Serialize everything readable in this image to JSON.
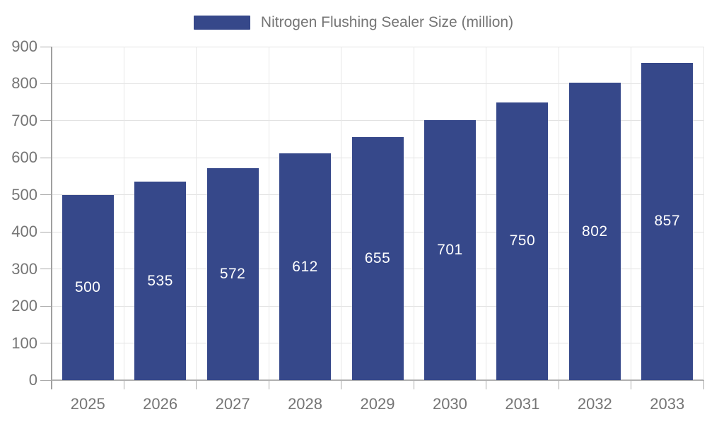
{
  "legend": {
    "label": "Nitrogen Flushing Sealer Size (million)"
  },
  "chart_data": {
    "type": "bar",
    "title": "",
    "xlabel": "",
    "ylabel": "",
    "categories": [
      "2025",
      "2026",
      "2027",
      "2028",
      "2029",
      "2030",
      "2031",
      "2032",
      "2033"
    ],
    "values": [
      500,
      535,
      572,
      612,
      655,
      701,
      750,
      802,
      857
    ],
    "series": [
      {
        "name": "Nitrogen Flushing Sealer Size (million)",
        "values": [
          500,
          535,
          572,
          612,
          655,
          701,
          750,
          802,
          857
        ]
      }
    ],
    "ylim": [
      0,
      900
    ],
    "ytick_step": 100,
    "ytick_labels": [
      "0",
      "100",
      "200",
      "300",
      "400",
      "500",
      "600",
      "700",
      "800",
      "900"
    ],
    "grid": true,
    "legend_position": "top",
    "value_labels": "inside-center",
    "colors": {
      "bar": "#36488A",
      "value_text": "#ffffff",
      "axis_text": "#757575",
      "grid_h": "#e2e2e2",
      "grid_v": "#e7e7e7",
      "axis_line": "#a0a0a0"
    }
  }
}
